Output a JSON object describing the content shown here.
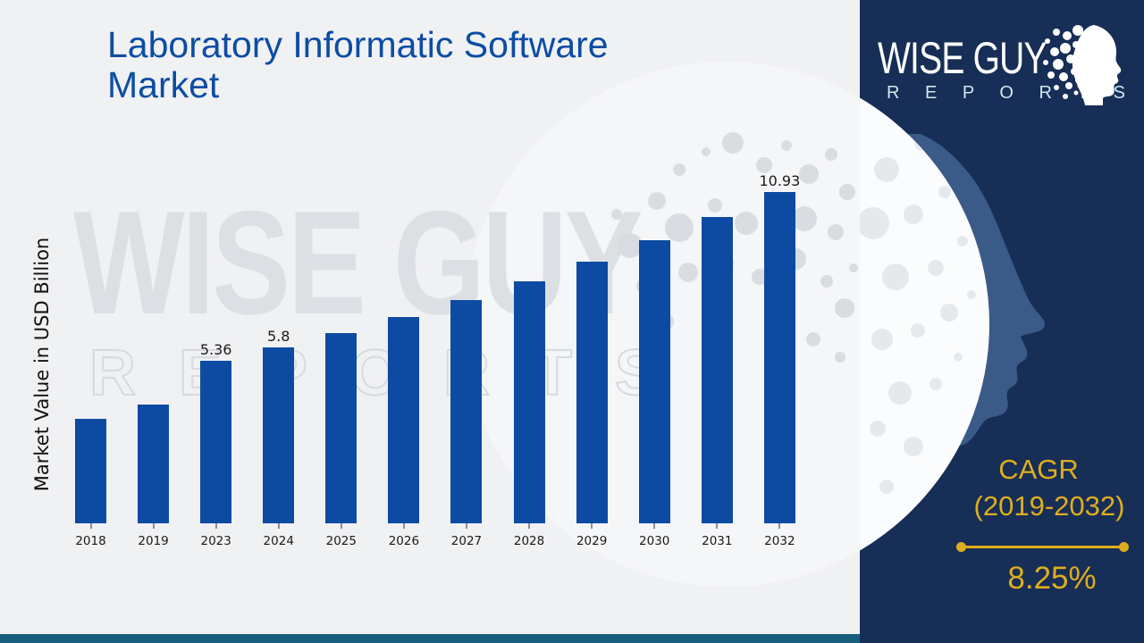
{
  "title": {
    "line1": "Laboratory Informatic Software",
    "line2": "Market"
  },
  "y_axis_label": "Market Value in USD Billion",
  "watermark": {
    "line1": "WISE GUY",
    "line2": "REPORTS"
  },
  "logo": {
    "name": "WISE GUY",
    "sub": "R E P O R T S"
  },
  "cagr": {
    "heading": "CAGR",
    "range": "(2019-2032)",
    "value": "8.25%"
  },
  "colors": {
    "bar_blue": "#0d4ba3",
    "title_blue": "#0c4da3",
    "panel_navy": "#172e56",
    "gold": "#dfae1e",
    "teal_accent": "#175f7d",
    "chart_background": "#f0f1f3",
    "watermark_gray": "#dcdfe4",
    "face_slate_blue": "#3a5a88"
  },
  "chart_data": {
    "type": "bar",
    "title": "Laboratory Informatic Software Market",
    "categories": [
      "2018",
      "2019",
      "2023",
      "2024",
      "2025",
      "2026",
      "2027",
      "2028",
      "2029",
      "2030",
      "2031",
      "2032"
    ],
    "values": [
      3.46,
      3.92,
      5.36,
      5.8,
      6.28,
      6.8,
      7.36,
      7.97,
      8.62,
      9.34,
      10.1,
      10.93
    ],
    "point_labels": [
      "",
      "",
      "5.36",
      "5.8",
      "",
      "",
      "",
      "",
      "",
      "",
      "",
      "10.93"
    ],
    "xlabel": "",
    "ylabel": "Market Value in USD Billion",
    "ylim": [
      0,
      11.5
    ],
    "grid": false,
    "legend": false,
    "bar_color": "#0d4ba3"
  }
}
